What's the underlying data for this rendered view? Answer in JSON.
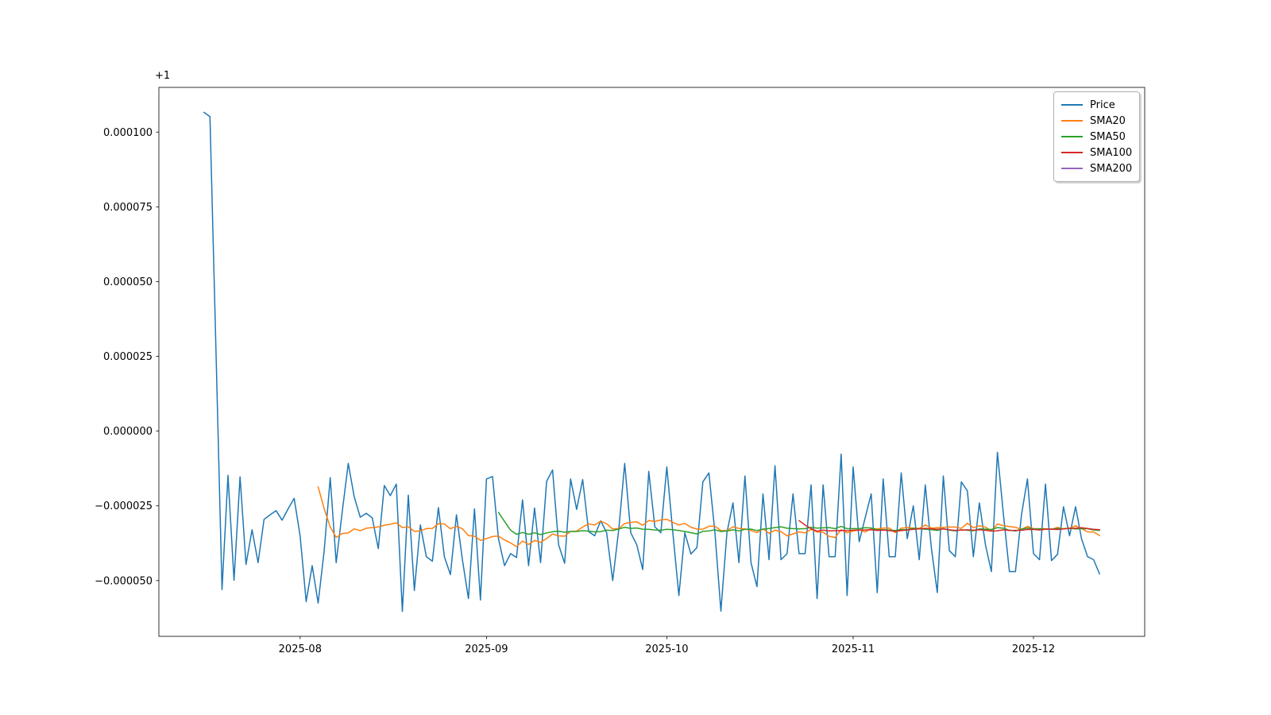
{
  "chart_data": {
    "type": "line",
    "title": "",
    "y_offset_label": "+1",
    "x_axis": {
      "start_date": "2025-07-16",
      "frequency": "daily",
      "range_days": [
        -7.5,
        156.5
      ],
      "ticks": [
        {
          "day": 16,
          "label": "2025-08"
        },
        {
          "day": 47,
          "label": "2025-09"
        },
        {
          "day": 77,
          "label": "2025-10"
        },
        {
          "day": 108,
          "label": "2025-11"
        },
        {
          "day": 138,
          "label": "2025-12"
        }
      ]
    },
    "y_axis": {
      "offset": 1,
      "ticks": [
        {
          "value_e6": 100,
          "label": "0.000100"
        },
        {
          "value_e6": 75,
          "label": "0.000075"
        },
        {
          "value_e6": 50,
          "label": "0.000050"
        },
        {
          "value_e6": 25,
          "label": "0.000025"
        },
        {
          "value_e6": 0,
          "label": "0.000000"
        },
        {
          "value_e6": -25,
          "label": "−0.000025"
        },
        {
          "value_e6": -50,
          "label": "−0.000050"
        }
      ]
    },
    "legend": {
      "position": "upper right",
      "entries": [
        {
          "label": "Price",
          "color": "#1f77b4"
        },
        {
          "label": "SMA20",
          "color": "#ff7f0e"
        },
        {
          "label": "SMA50",
          "color": "#2ca02c"
        },
        {
          "label": "SMA100",
          "color": "#d62728"
        },
        {
          "label": "SMA200",
          "color": "#9467bd"
        }
      ]
    },
    "series": [
      {
        "name": "Price",
        "color": "#1f77b4",
        "kind": "price"
      },
      {
        "name": "SMA20",
        "color": "#ff7f0e",
        "kind": "sma",
        "window": 20
      },
      {
        "name": "SMA50",
        "color": "#2ca02c",
        "kind": "sma",
        "window": 50
      },
      {
        "name": "SMA100",
        "color": "#d62728",
        "kind": "sma",
        "window": 100
      },
      {
        "name": "SMA200",
        "color": "#9467bd",
        "kind": "sma",
        "window": 200
      }
    ],
    "price_minus_offset_e6": [
      106.6,
      105.2,
      26.7,
      -53.0,
      -14.8,
      -49.9,
      -15.3,
      -44.6,
      -33.0,
      -44.0,
      -29.5,
      -28.0,
      -26.6,
      -29.8,
      -26.0,
      -22.5,
      -35.0,
      -57.0,
      -45.0,
      -57.5,
      -40.0,
      -15.6,
      -44.0,
      -27.0,
      -10.8,
      -22.0,
      -28.8,
      -27.5,
      -29.0,
      -39.3,
      -18.2,
      -21.6,
      -17.7,
      -60.3,
      -21.4,
      -53.3,
      -31.4,
      -42.0,
      -43.5,
      -25.6,
      -42.0,
      -48.0,
      -28.0,
      -43.0,
      -56.0,
      -26.0,
      -56.5,
      -16.0,
      -15.2,
      -36.0,
      -45.0,
      -41.0,
      -42.3,
      -23.0,
      -45.0,
      -25.7,
      -44.0,
      -16.8,
      -13.0,
      -38.0,
      -44.2,
      -16.0,
      -26.2,
      -16.2,
      -33.6,
      -35.0,
      -30.0,
      -34.0,
      -50.0,
      -33.0,
      -10.8,
      -34.0,
      -38.0,
      -46.3,
      -13.5,
      -32.0,
      -34.0,
      -12.0,
      -34.0,
      -55.0,
      -34.0,
      -41.1,
      -39.0,
      -17.0,
      -14.0,
      -34.0,
      -60.2,
      -34.0,
      -24.0,
      -44.0,
      -15.0,
      -44.0,
      -52.0,
      -21.0,
      -43.0,
      -11.6,
      -43.0,
      -41.0,
      -21.0,
      -41.0,
      -41.0,
      -18.0,
      -56.0,
      -18.0,
      -42.0,
      -42.0,
      -7.7,
      -55.0,
      -12.0,
      -37.0,
      -29.0,
      -21.0,
      -54.0,
      -16.0,
      -42.0,
      -42.0,
      -14.0,
      -36.0,
      -25.0,
      -43.0,
      -18.0,
      -39.0,
      -54.0,
      -15.0,
      -40.0,
      -42.0,
      -17.0,
      -20.0,
      -42.0,
      -24.0,
      -38.0,
      -47.0,
      -7.1,
      -28.0,
      -47.0,
      -47.0,
      -28.0,
      -16.0,
      -41.0,
      -43.0,
      -17.7,
      -43.3,
      -41.2,
      -25.3,
      -35.0,
      -25.3,
      -36.0,
      -42.0,
      -43.0,
      -47.8
    ]
  }
}
